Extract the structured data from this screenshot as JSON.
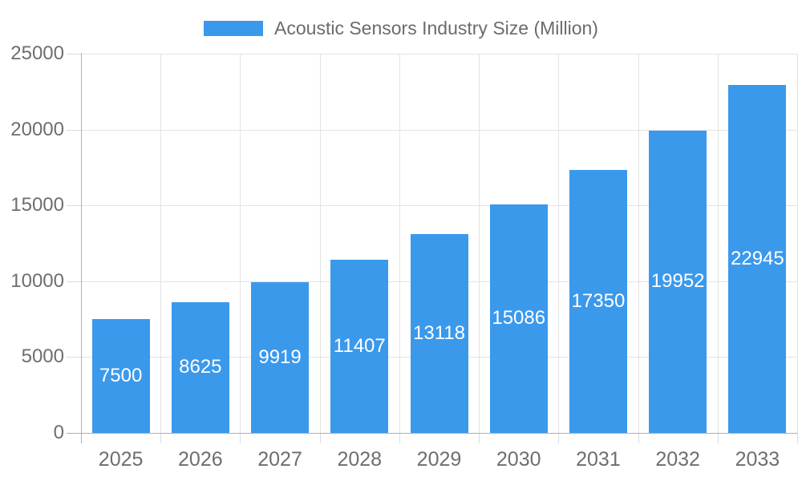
{
  "chart_data": {
    "type": "bar",
    "legend": "Acoustic Sensors Industry Size (Million)",
    "legend_position": "top",
    "categories": [
      "2025",
      "2026",
      "2027",
      "2028",
      "2029",
      "2030",
      "2031",
      "2032",
      "2033"
    ],
    "values": [
      7500,
      8625,
      9919,
      11407,
      13118,
      15086,
      17350,
      19952,
      22945
    ],
    "ylim": [
      0,
      25000
    ],
    "yticks": [
      0,
      5000,
      10000,
      15000,
      20000,
      25000
    ],
    "grid": true,
    "show_value_labels": true,
    "colors": {
      "bar": "#3b99ec",
      "value_label": "#ffffff",
      "axis_text": "#6e6e6e",
      "legend_text": "#6b6b6b",
      "gridline": "#e3e3e3",
      "tick": "#dcdcdc",
      "axis_line": "#b0b0b0",
      "background": "#ffffff"
    }
  }
}
